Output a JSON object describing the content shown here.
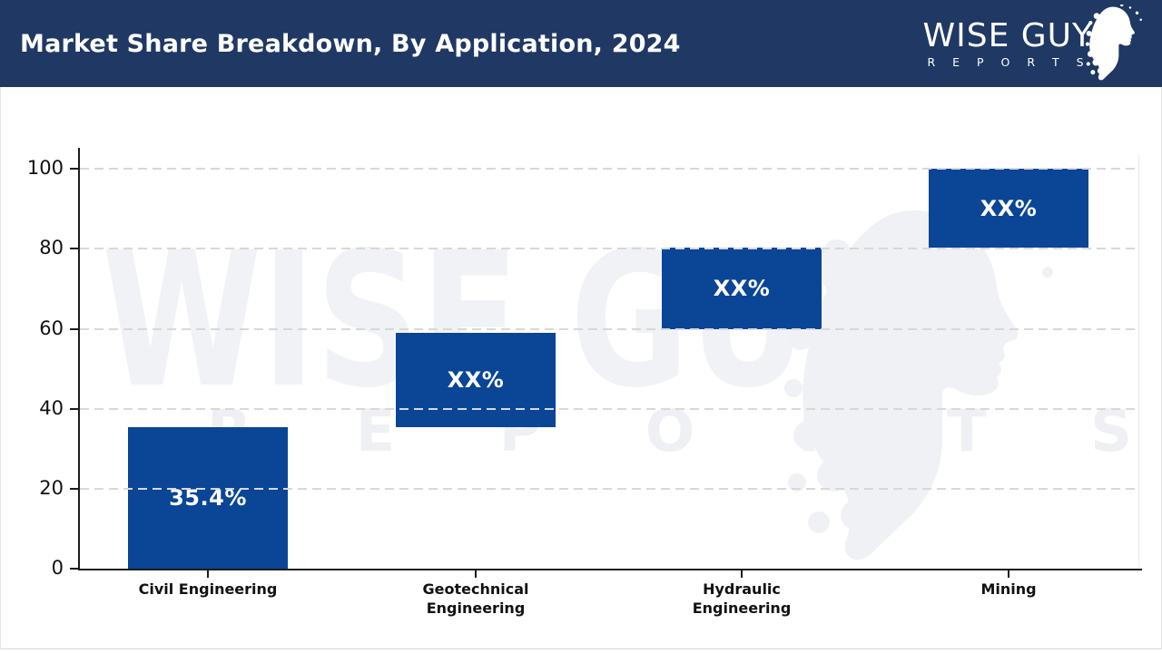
{
  "header": {
    "title": "Market Share Breakdown, By Application, 2024",
    "bg_color": "#1f3864",
    "logo": {
      "name": "WISE GUY",
      "sub": "R E P O R T S"
    }
  },
  "watermark": {
    "name": "WISE GUY",
    "sub": "R E P O R T S"
  },
  "chart_data": {
    "type": "bar",
    "subtype": "floating-waterfall",
    "title": "Market Share Breakdown, By Application, 2024",
    "xlabel": "",
    "ylabel": "",
    "ylim": [
      0,
      105
    ],
    "yticks": [
      0,
      20,
      40,
      60,
      80,
      100
    ],
    "grid": "horizontal-dashed",
    "grid_color": "#d8d8d8",
    "bar_color": "#0a4596",
    "value_label_color": "#ffffff",
    "categories": [
      "Civil Engineering",
      "Geotechnical Engineering",
      "Hydraulic Engineering",
      "Mining"
    ],
    "bars": [
      {
        "category_lines": [
          "Civil Engineering"
        ],
        "start": 0,
        "end": 35.4,
        "label": "35.4%"
      },
      {
        "category_lines": [
          "Geotechnical",
          "Engineering"
        ],
        "start": 35.4,
        "end": 59.0,
        "label": "XX%"
      },
      {
        "category_lines": [
          "Hydraulic",
          "Engineering"
        ],
        "start": 59.9,
        "end": 80.3,
        "label": "XX%"
      },
      {
        "category_lines": [
          "Mining"
        ],
        "start": 80.3,
        "end": 100.0,
        "label": "XX%"
      }
    ]
  }
}
